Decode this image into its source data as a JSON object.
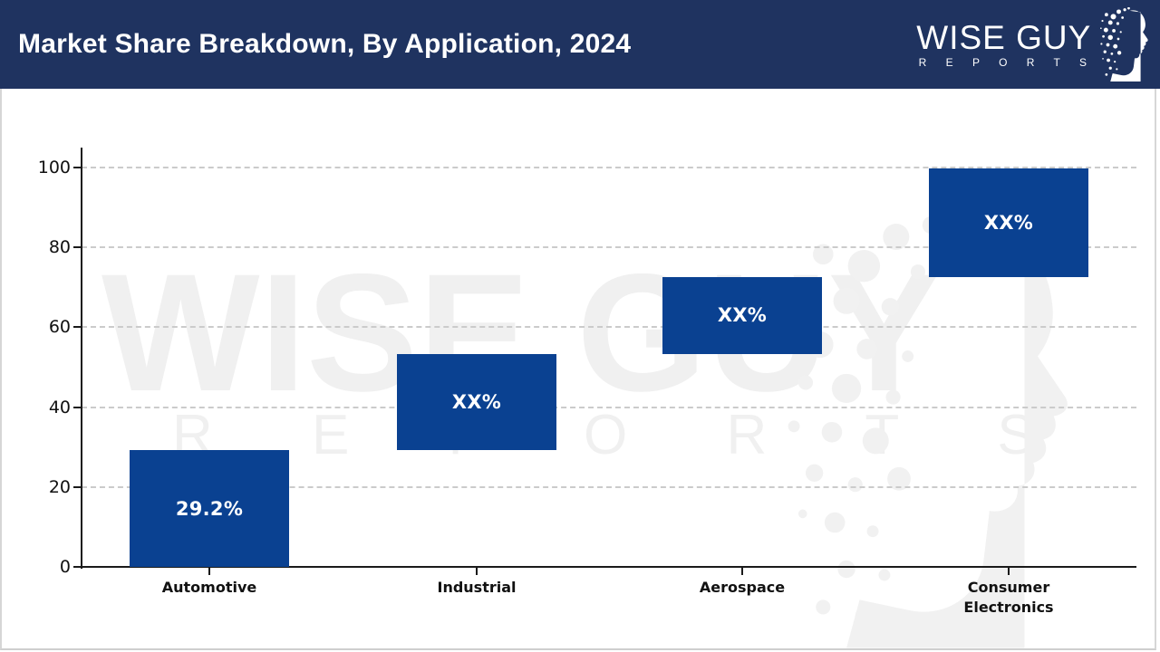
{
  "header": {
    "title": "Market Share Breakdown, By Application, 2024",
    "logo": {
      "line1": "WISE GUY",
      "line2": "R E P O R T S"
    }
  },
  "watermark": {
    "line1": "WISE GUY",
    "line2": "R E P O R T S"
  },
  "chart_data": {
    "type": "bar",
    "subtype": "waterfall",
    "title": "Market Share Breakdown, By Application, 2024",
    "xlabel": "",
    "ylabel": "",
    "categories": [
      "Automotive",
      "Industrial",
      "Aerospace",
      "Consumer Electronics"
    ],
    "segments": [
      {
        "category": "Automotive",
        "label": "29.2%",
        "start": 0,
        "end": 29.2
      },
      {
        "category": "Industrial",
        "label": "XX%",
        "start": 29.2,
        "end": 53.4
      },
      {
        "category": "Aerospace",
        "label": "XX%",
        "start": 53.4,
        "end": 72.6
      },
      {
        "category": "Consumer Electronics",
        "label": "XX%",
        "start": 72.6,
        "end": 99.7
      }
    ],
    "y_ticks": [
      0,
      20,
      40,
      60,
      80,
      100
    ],
    "ylim": [
      0,
      105
    ],
    "grid": "horizontal-dashed",
    "legend": null,
    "colors": {
      "bar": "#0a4191",
      "bar_label": "#ffffff",
      "grid": "#cbcbcb",
      "axis": "#1a1a1a",
      "header_bg": "#1f3360",
      "watermark": "#f0f0f0"
    }
  }
}
